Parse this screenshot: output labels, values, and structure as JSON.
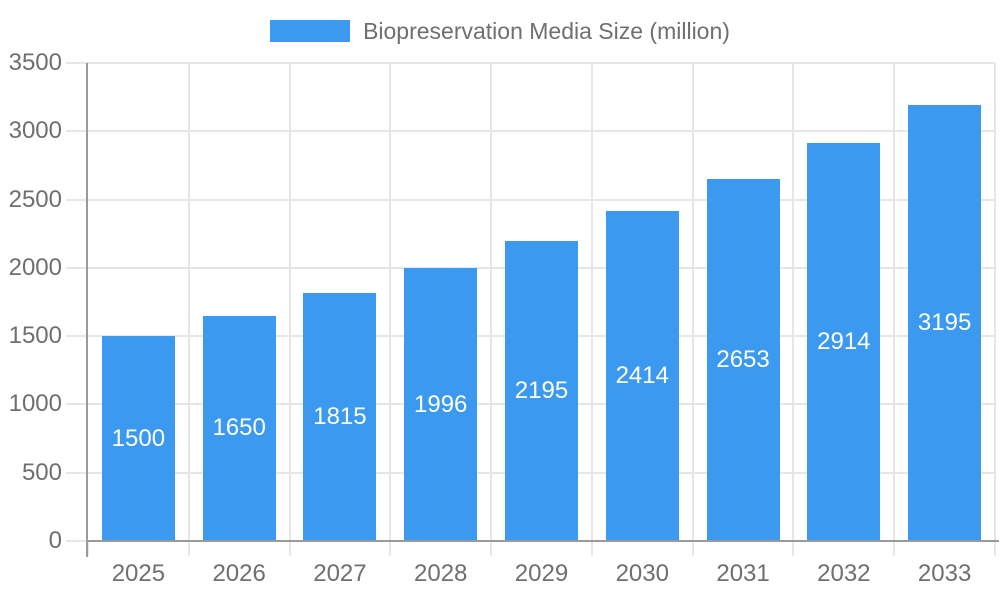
{
  "chart_data": {
    "type": "bar",
    "title": "Biopreservation Media Size (million)",
    "categories": [
      "2025",
      "2026",
      "2027",
      "2028",
      "2029",
      "2030",
      "2031",
      "2032",
      "2033"
    ],
    "values": [
      1500,
      1650,
      1815,
      1996,
      2195,
      2414,
      2653,
      2914,
      3195
    ],
    "xlabel": "",
    "ylabel": "",
    "ylim": [
      0,
      3500
    ],
    "yticks": [
      0,
      500,
      1000,
      1500,
      2000,
      2500,
      3000,
      3500
    ],
    "grid": true,
    "legend_position": "top-center",
    "legend_entries": [
      "Biopreservation Media Size (million)"
    ],
    "bar_color": "#3B99F0",
    "bar_label_color": "#FFFFFF",
    "grid_color": "#E6E6E6",
    "axis_color": "#9A9A9A",
    "tick_label_color": "#6F6F6F",
    "background_color": "#FFFFFF"
  }
}
